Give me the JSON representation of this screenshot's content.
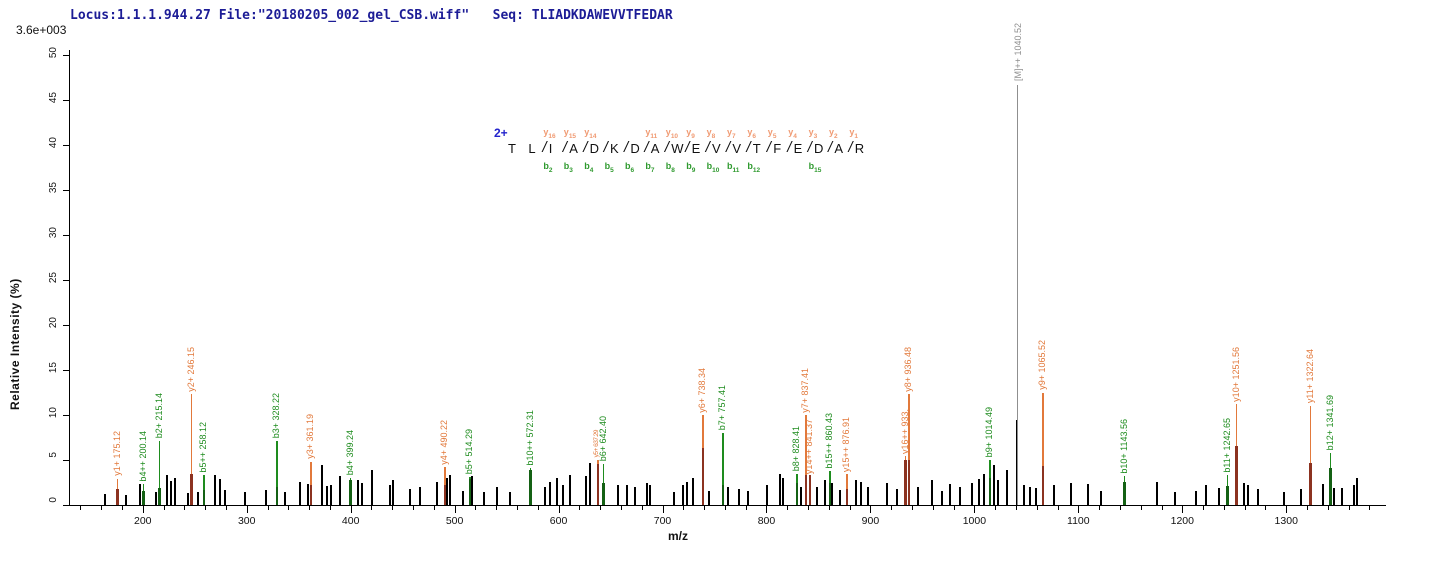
{
  "header": {
    "locus_file": "Locus:1.1.1.944.27 File:\"20180205_002_gel_CSB.wiff\"",
    "seq_prefix": "Seq: ",
    "sequence": "TLIADKDAWEVVTFEDAR"
  },
  "colors": {
    "header_navy": "#1c1c96",
    "charge_blue": "#2222cc",
    "y_ion": "#e2793b",
    "y_ion_dark": "#8c3220",
    "y_seq_label": "#f09a72",
    "b_ion": "#1e8c1e",
    "b_ion_dark": "#146114",
    "b_seq_label": "#2f9a2f",
    "precursor_gray": "#8f8f8f",
    "peak_black": "#000000"
  },
  "axes": {
    "y_title": "Relative  Intensity (%)",
    "y_scale_note": "3.6e+003",
    "x_title": "m/z",
    "y_ticks": [
      0,
      5,
      10,
      15,
      20,
      25,
      30,
      35,
      40,
      45,
      50
    ],
    "x_major_ticks": [
      200,
      300,
      400,
      500,
      600,
      700,
      800,
      900,
      1000,
      1100,
      1200,
      1300
    ],
    "x_minor_step": 20,
    "mz_min": 130,
    "mz_max": 1395,
    "pct_max": 50
  },
  "sequence_panel": {
    "charge_label": "2+",
    "residues": [
      "T",
      "L",
      "I",
      "A",
      "D",
      "K",
      "D",
      "A",
      "W",
      "E",
      "V",
      "V",
      "T",
      "F",
      "E",
      "D",
      "A",
      "R"
    ],
    "boundaries": [
      {
        "after": 2,
        "y": 16,
        "b": 2
      },
      {
        "after": 3,
        "y": 15,
        "b": 3
      },
      {
        "after": 4,
        "y": 14,
        "b": 4
      },
      {
        "after": 5,
        "y": null,
        "b": 5
      },
      {
        "after": 6,
        "y": null,
        "b": 6
      },
      {
        "after": 7,
        "y": 11,
        "b": 7
      },
      {
        "after": 8,
        "y": 10,
        "b": 8
      },
      {
        "after": 9,
        "y": 9,
        "b": 9
      },
      {
        "after": 10,
        "y": 8,
        "b": 10
      },
      {
        "after": 11,
        "y": 7,
        "b": 11
      },
      {
        "after": 12,
        "y": 6,
        "b": 12
      },
      {
        "after": 13,
        "y": 5,
        "b": null
      },
      {
        "after": 14,
        "y": 4,
        "b": null
      },
      {
        "after": 15,
        "y": 3,
        "b": 15
      },
      {
        "after": 16,
        "y": 2,
        "b": null
      },
      {
        "after": 17,
        "y": 1,
        "b": null
      }
    ]
  },
  "chart_data": {
    "type": "ms2-fragmentation-spectrum",
    "title": "",
    "xlabel": "m/z",
    "ylabel": "Relative  Intensity (%)",
    "xlim": [
      130,
      1395
    ],
    "ylim": [
      0,
      50
    ],
    "base_peak_intensity": "3.6e+003",
    "precursor": {
      "label": "[M]++ 1040.52",
      "mz": 1040.52,
      "line_top_pct": 46.7,
      "peak_pct": 9.5
    },
    "labeled_peaks": [
      {
        "ion": "y",
        "label": "y1+ 175.12",
        "mz": 175.12,
        "peak_pct": 1.8,
        "label_pct": 2.9
      },
      {
        "ion": "b",
        "label": "b4++ 200.14",
        "mz": 200.14,
        "peak_pct": 1.6,
        "label_pct": 2.3
      },
      {
        "ion": "b",
        "label": "b2+ 215.14",
        "mz": 215.14,
        "peak_pct": 1.9,
        "label_pct": 7.1
      },
      {
        "ion": "y",
        "label": "y2+ 246.15",
        "mz": 246.15,
        "peak_pct": 3.5,
        "label_pct": 12.3
      },
      {
        "ion": "b",
        "label": "b5++ 258.12",
        "mz": 258.12,
        "peak_pct": 1.7,
        "label_pct": 3.3
      },
      {
        "ion": "b",
        "label": "b3+ 328.22",
        "mz": 328.22,
        "peak_pct": 2.0,
        "label_pct": 7.1
      },
      {
        "ion": "y",
        "label": "y3+ 361.19",
        "mz": 361.19,
        "peak_pct": 2.2,
        "label_pct": 4.8
      },
      {
        "ion": "b",
        "label": "b4+ 399.24",
        "mz": 399.24,
        "peak_pct": 2.8,
        "label_pct": 3.0
      },
      {
        "ion": "y",
        "label": "y4+ 490.22",
        "mz": 490.22,
        "peak_pct": 2.2,
        "label_pct": 4.2
      },
      {
        "ion": "b",
        "label": "b5+ 514.29",
        "mz": 514.29,
        "peak_pct": 2.9,
        "label_pct": 3.1
      },
      {
        "ion": "b",
        "label": "b10++ 572.31",
        "mz": 572.31,
        "peak_pct": 3.9,
        "label_pct": 4.1
      },
      {
        "ion": "y",
        "label": "y5+ 637.29",
        "mz": 637.29,
        "peak_pct": 4.6,
        "label_pct": 5.0,
        "tiny": true
      },
      {
        "ion": "b",
        "label": "b6+ 642.40",
        "mz": 642.4,
        "peak_pct": 2.4,
        "label_pct": 4.6
      },
      {
        "ion": "y",
        "label": "y6+ 738.34",
        "mz": 738.34,
        "peak_pct": 6.3,
        "label_pct": 10.0
      },
      {
        "ion": "b",
        "label": "b7+ 757.41",
        "mz": 757.41,
        "peak_pct": 2.2,
        "label_pct": 8.0
      },
      {
        "ion": "b",
        "label": "b8+ 828.41",
        "mz": 828.41,
        "peak_pct": 2.4,
        "label_pct": 3.5
      },
      {
        "ion": "y",
        "label": "y7+ 837.41",
        "mz": 837.41,
        "peak_pct": 3.3,
        "label_pct": 10.0
      },
      {
        "ion": "y",
        "label": "y14++ 841.37",
        "mz": 841.37,
        "peak_pct": 3.3,
        "label_pct": 3.1
      },
      {
        "ion": "b",
        "label": "b15++ 860.43",
        "mz": 860.43,
        "peak_pct": 2.4,
        "label_pct": 3.8
      },
      {
        "ion": "y",
        "label": "y15++ 876.91",
        "mz": 876.91,
        "peak_pct": 1.8,
        "label_pct": 3.4
      },
      {
        "ion": "y",
        "label": "y16++ 933.",
        "mz": 932.96,
        "peak_pct": 5.0,
        "label_pct": 5.4
      },
      {
        "ion": "y",
        "label": "y8+ 936.48",
        "mz": 936.48,
        "peak_pct": 5.0,
        "label_pct": 12.3
      },
      {
        "ion": "b",
        "label": "b9+ 1014.49",
        "mz": 1014.49,
        "peak_pct": 3.0,
        "label_pct": 5.0
      },
      {
        "ion": "y",
        "label": "y9+ 1065.52",
        "mz": 1065.52,
        "peak_pct": 4.3,
        "label_pct": 12.5
      },
      {
        "ion": "b",
        "label": "b10+ 1143.56",
        "mz": 1143.56,
        "peak_pct": 2.6,
        "label_pct": 3.2
      },
      {
        "ion": "b",
        "label": "b11+ 1242.65",
        "mz": 1242.65,
        "peak_pct": 2.1,
        "label_pct": 3.3
      },
      {
        "ion": "y",
        "label": "y10+ 1251.56",
        "mz": 1251.56,
        "peak_pct": 6.6,
        "label_pct": 11.2
      },
      {
        "ion": "y",
        "label": "y11+ 1322.64",
        "mz": 1322.64,
        "peak_pct": 4.7,
        "label_pct": 11.0
      },
      {
        "ion": "b",
        "label": "b12+ 1341.69",
        "mz": 1341.69,
        "peak_pct": 4.1,
        "label_pct": 5.8
      }
    ],
    "unlabeled_peaks": [
      [
        163,
        1.2
      ],
      [
        183,
        1.1
      ],
      [
        196,
        2.3
      ],
      [
        212,
        1.4
      ],
      [
        222,
        3.3
      ],
      [
        226,
        2.7
      ],
      [
        230,
        3.0
      ],
      [
        243,
        1.3
      ],
      [
        252,
        1.5
      ],
      [
        269,
        3.3
      ],
      [
        273,
        2.9
      ],
      [
        278,
        1.7
      ],
      [
        297,
        1.5
      ],
      [
        318,
        1.7
      ],
      [
        336,
        1.5
      ],
      [
        350,
        2.6
      ],
      [
        358,
        2.3
      ],
      [
        371,
        4.4
      ],
      [
        376,
        2.1
      ],
      [
        380,
        2.2
      ],
      [
        389,
        3.2
      ],
      [
        406,
        2.8
      ],
      [
        410,
        2.4
      ],
      [
        420,
        3.9
      ],
      [
        437,
        2.2
      ],
      [
        440,
        2.8
      ],
      [
        456,
        1.8
      ],
      [
        466,
        2.0
      ],
      [
        482,
        2.6
      ],
      [
        492,
        3.0
      ],
      [
        495,
        3.3
      ],
      [
        507,
        1.6
      ],
      [
        516,
        3.2
      ],
      [
        527,
        1.4
      ],
      [
        540,
        2.0
      ],
      [
        552,
        1.5
      ],
      [
        586,
        2.0
      ],
      [
        591,
        2.6
      ],
      [
        598,
        3.0
      ],
      [
        603,
        2.2
      ],
      [
        610,
        3.3
      ],
      [
        625,
        3.2
      ],
      [
        629,
        4.7
      ],
      [
        656,
        2.2
      ],
      [
        665,
        2.2
      ],
      [
        673,
        2.0
      ],
      [
        684,
        2.4
      ],
      [
        687,
        2.2
      ],
      [
        710,
        1.4
      ],
      [
        719,
        2.2
      ],
      [
        723,
        2.6
      ],
      [
        728,
        3.0
      ],
      [
        744,
        1.6
      ],
      [
        762,
        2.0
      ],
      [
        773,
        1.8
      ],
      [
        781,
        1.6
      ],
      [
        800,
        2.2
      ],
      [
        812,
        3.4
      ],
      [
        815,
        3.0
      ],
      [
        832,
        2.0
      ],
      [
        848,
        2.0
      ],
      [
        855,
        2.8
      ],
      [
        862,
        2.4
      ],
      [
        870,
        1.7
      ],
      [
        885,
        2.8
      ],
      [
        890,
        2.6
      ],
      [
        897,
        2.0
      ],
      [
        915,
        2.4
      ],
      [
        925,
        1.8
      ],
      [
        945,
        2.0
      ],
      [
        958,
        2.8
      ],
      [
        968,
        1.6
      ],
      [
        976,
        2.3
      ],
      [
        985,
        2.0
      ],
      [
        997,
        2.4
      ],
      [
        1003,
        2.9
      ],
      [
        1008,
        3.4
      ],
      [
        1018,
        4.4
      ],
      [
        1022,
        2.8
      ],
      [
        1030,
        3.9
      ],
      [
        1040.5,
        9.5
      ],
      [
        1047,
        2.2
      ],
      [
        1053,
        2.0
      ],
      [
        1058,
        1.9
      ],
      [
        1076,
        2.2
      ],
      [
        1092,
        2.5
      ],
      [
        1108,
        2.3
      ],
      [
        1121,
        1.6
      ],
      [
        1175,
        2.6
      ],
      [
        1192,
        1.5
      ],
      [
        1212,
        1.6
      ],
      [
        1222,
        2.2
      ],
      [
        1234,
        1.9
      ],
      [
        1258,
        2.4
      ],
      [
        1262,
        2.2
      ],
      [
        1272,
        1.8
      ],
      [
        1297,
        1.4
      ],
      [
        1313,
        1.8
      ],
      [
        1334,
        2.3
      ],
      [
        1345,
        1.9
      ],
      [
        1353,
        1.9
      ],
      [
        1364,
        2.2
      ],
      [
        1367,
        3.0
      ]
    ]
  }
}
